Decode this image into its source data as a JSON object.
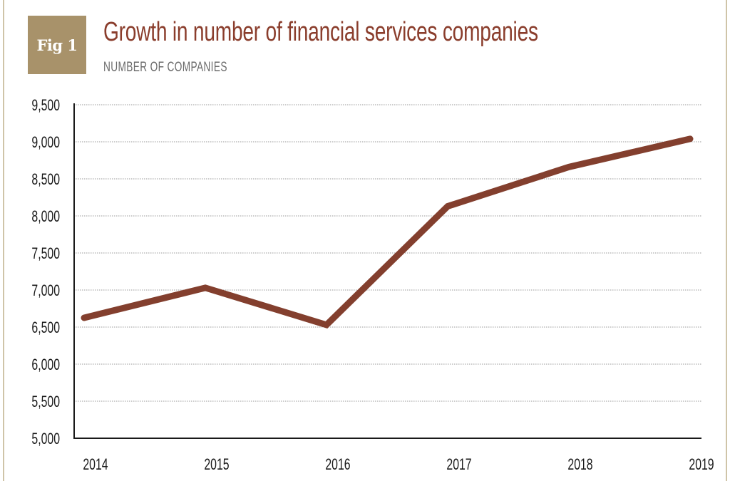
{
  "figure": {
    "badge": "Fig 1",
    "title": "Growth in number of financial services companies",
    "subtitle": "NUMBER OF COMPANIES"
  },
  "colors": {
    "line": "#833f2e",
    "title": "#8a3d2c",
    "badge_bg": "#a8926a",
    "frame": "#cfc4a8",
    "grid": "#9a9a9a",
    "axis": "#1a1a1a"
  },
  "chart_data": {
    "type": "line",
    "title": "Growth in number of financial services companies",
    "subtitle": "NUMBER OF COMPANIES",
    "xlabel": "",
    "ylabel": "Number of companies",
    "categories": [
      "2014",
      "2015",
      "2016",
      "2017",
      "2018",
      "2019"
    ],
    "series": [
      {
        "name": "Number of companies",
        "values": [
          6625,
          7030,
          6530,
          8130,
          8660,
          9040
        ]
      }
    ],
    "ylim": [
      5000,
      9500
    ],
    "yticks": [
      5000,
      5500,
      6000,
      6500,
      7000,
      7500,
      8000,
      8500,
      9000,
      9500
    ],
    "ytick_labels": [
      "5,000",
      "5,500",
      "6,000",
      "6,500",
      "7,000",
      "7,500",
      "8,000",
      "8,500",
      "9,000",
      "9,500"
    ],
    "grid": "horizontal-dotted",
    "legend": "none"
  }
}
